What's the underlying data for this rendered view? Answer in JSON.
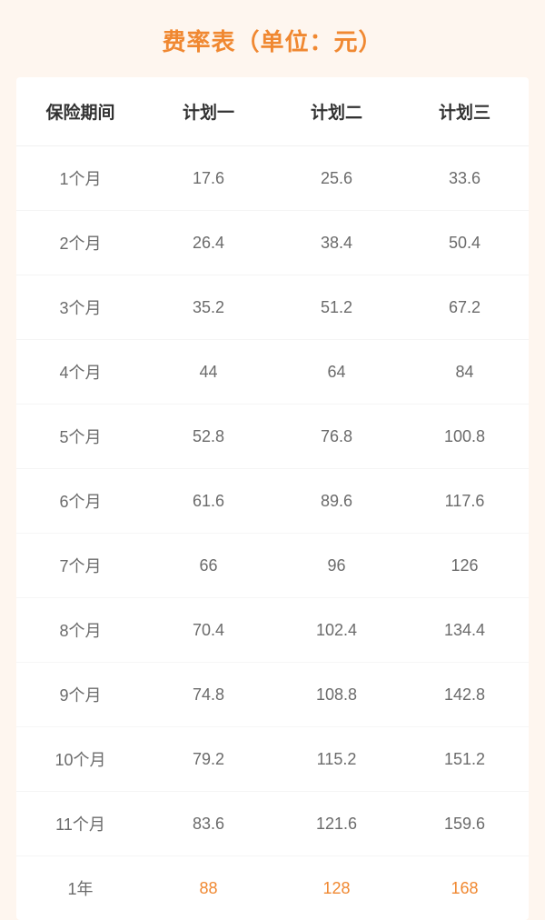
{
  "title": "费率表（单位：元）",
  "table": {
    "columns": [
      "保险期间",
      "计划一",
      "计划二",
      "计划三"
    ],
    "rows": [
      {
        "cells": [
          "1个月",
          "17.6",
          "25.6",
          "33.6"
        ],
        "highlight": false
      },
      {
        "cells": [
          "2个月",
          "26.4",
          "38.4",
          "50.4"
        ],
        "highlight": false
      },
      {
        "cells": [
          "3个月",
          "35.2",
          "51.2",
          "67.2"
        ],
        "highlight": false
      },
      {
        "cells": [
          "4个月",
          "44",
          "64",
          "84"
        ],
        "highlight": false
      },
      {
        "cells": [
          "5个月",
          "52.8",
          "76.8",
          "100.8"
        ],
        "highlight": false
      },
      {
        "cells": [
          "6个月",
          "61.6",
          "89.6",
          "117.6"
        ],
        "highlight": false
      },
      {
        "cells": [
          "7个月",
          "66",
          "96",
          "126"
        ],
        "highlight": false
      },
      {
        "cells": [
          "8个月",
          "70.4",
          "102.4",
          "134.4"
        ],
        "highlight": false
      },
      {
        "cells": [
          "9个月",
          "74.8",
          "108.8",
          "142.8"
        ],
        "highlight": false
      },
      {
        "cells": [
          "10个月",
          "79.2",
          "115.2",
          "151.2"
        ],
        "highlight": false
      },
      {
        "cells": [
          "11个月",
          "83.6",
          "121.6",
          "159.6"
        ],
        "highlight": false
      },
      {
        "cells": [
          "1年",
          "88",
          "128",
          "168"
        ],
        "highlight": true
      }
    ]
  },
  "styling": {
    "background_color": "#fef6ef",
    "table_background": "#ffffff",
    "title_color": "#f08831",
    "title_fontsize": 26,
    "header_color": "#323232",
    "header_fontsize": 19,
    "cell_color": "#6b6b6b",
    "cell_fontsize": 18,
    "highlight_color": "#f08831",
    "border_color": "#f1f1f1"
  }
}
